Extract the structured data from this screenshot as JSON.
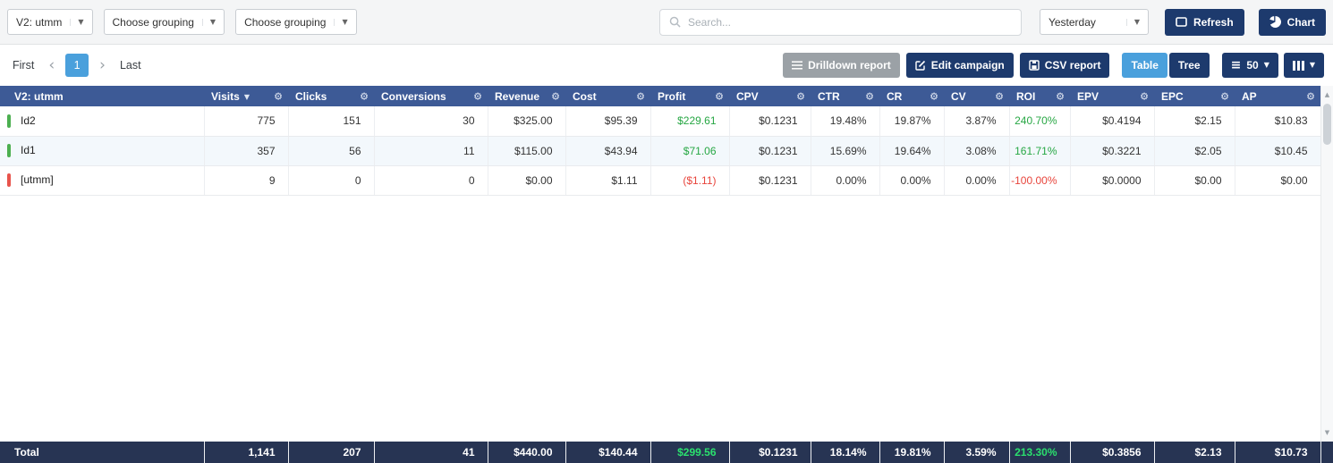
{
  "colors": {
    "header_bg": "#3d5a96",
    "total_bg": "#273453",
    "navy": "#1d3a6d",
    "accent_blue": "#4aa0dc",
    "button_gray": "#9ba1a6",
    "positive": "#27a744",
    "negative": "#e8453c",
    "positive_on_dark": "#2be06e"
  },
  "icons": {
    "gear": "⚙",
    "caret": "▼",
    "sort_desc": "▼",
    "chevron_left": "‹",
    "chevron_right": "›",
    "hamburger": "≡",
    "scroll_up": "▲",
    "scroll_down": "▼"
  },
  "toolbar": {
    "campaign_select": "V2: utmm",
    "grouping_select_1": "Choose grouping",
    "grouping_select_2": "Choose grouping",
    "search_placeholder": "Search...",
    "date_select": "Yesterday",
    "refresh_label": "Refresh",
    "chart_label": "Chart"
  },
  "pagination": {
    "first": "First",
    "current_page": "1",
    "last": "Last"
  },
  "actions": {
    "drilldown_label": "Drilldown report",
    "edit_campaign_label": "Edit campaign",
    "csv_label": "CSV report",
    "table_label": "Table",
    "tree_label": "Tree",
    "page_size": "50"
  },
  "table": {
    "name_header": "V2: utmm",
    "columns": [
      {
        "label": "Visits",
        "sorted": true
      },
      {
        "label": "Clicks",
        "sorted": false
      },
      {
        "label": "Conversions",
        "sorted": false
      },
      {
        "label": "Revenue",
        "sorted": false
      },
      {
        "label": "Cost",
        "sorted": false
      },
      {
        "label": "Profit",
        "sorted": false
      },
      {
        "label": "CPV",
        "sorted": false
      },
      {
        "label": "CTR",
        "sorted": false
      },
      {
        "label": "CR",
        "sorted": false
      },
      {
        "label": "CV",
        "sorted": false
      },
      {
        "label": "ROI",
        "sorted": false
      },
      {
        "label": "EPV",
        "sorted": false
      },
      {
        "label": "EPC",
        "sorted": false
      },
      {
        "label": "AP",
        "sorted": false
      }
    ],
    "rows": [
      {
        "status": "green",
        "name": "Id2",
        "values": [
          "775",
          "151",
          "30",
          "$325.00",
          "$95.39",
          "$229.61",
          "$0.1231",
          "19.48%",
          "19.87%",
          "3.87%",
          "240.70%",
          "$0.4194",
          "$2.15",
          "$10.83"
        ]
      },
      {
        "status": "green",
        "name": "Id1",
        "values": [
          "357",
          "56",
          "11",
          "$115.00",
          "$43.94",
          "$71.06",
          "$0.1231",
          "15.69%",
          "19.64%",
          "3.08%",
          "161.71%",
          "$0.3221",
          "$2.05",
          "$10.45"
        ]
      },
      {
        "status": "red",
        "name": "[utmm]",
        "values": [
          "9",
          "0",
          "0",
          "$0.00",
          "$1.11",
          "($1.11)",
          "$0.1231",
          "0.00%",
          "0.00%",
          "0.00%",
          "-100.00%",
          "$0.0000",
          "$0.00",
          "$0.00"
        ]
      }
    ],
    "total": {
      "label": "Total",
      "values": [
        "1,141",
        "207",
        "41",
        "$440.00",
        "$140.44",
        "$299.56",
        "$0.1231",
        "18.14%",
        "19.81%",
        "3.59%",
        "213.30%",
        "$0.3856",
        "$2.13",
        "$10.73"
      ]
    }
  }
}
